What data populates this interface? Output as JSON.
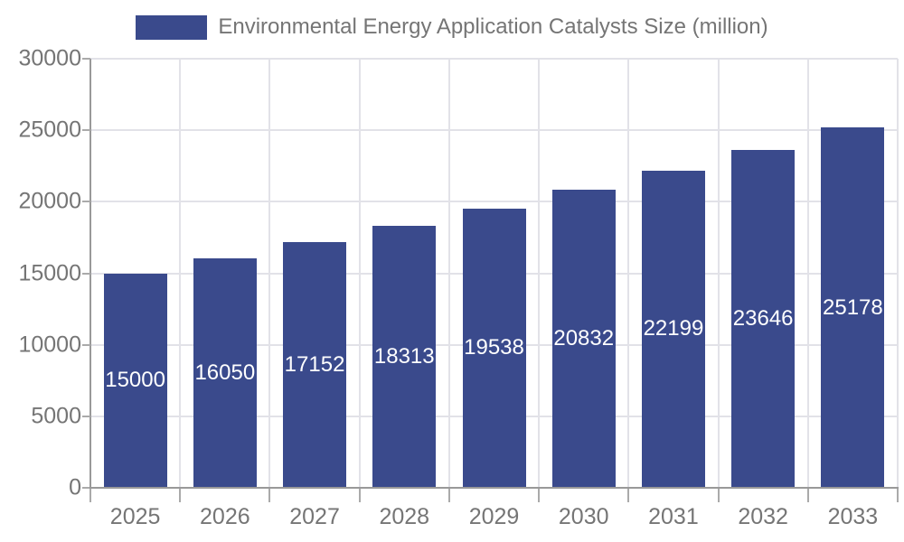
{
  "chart_data": {
    "type": "bar",
    "title": "Environmental Energy Application Catalysts Size (million)",
    "categories": [
      "2025",
      "2026",
      "2027",
      "2028",
      "2029",
      "2030",
      "2031",
      "2032",
      "2033"
    ],
    "values": [
      15000,
      16050,
      17152,
      18313,
      19538,
      20832,
      22199,
      23646,
      25178
    ],
    "xlabel": "",
    "ylabel": "",
    "ylim": [
      0,
      30000
    ],
    "yticks": [
      0,
      5000,
      10000,
      15000,
      20000,
      25000,
      30000
    ],
    "grid": true,
    "legend_position": "top",
    "value_label_position": "inside-center"
  },
  "colors": {
    "bar": "#3A4A8C",
    "grid": "#E2E2E8",
    "axis": "#999999",
    "tick": "#AAAAAA",
    "tick_label": "#757575",
    "title": "#757575",
    "value_label": "#FFFFFF",
    "background": "#FFFFFF"
  }
}
